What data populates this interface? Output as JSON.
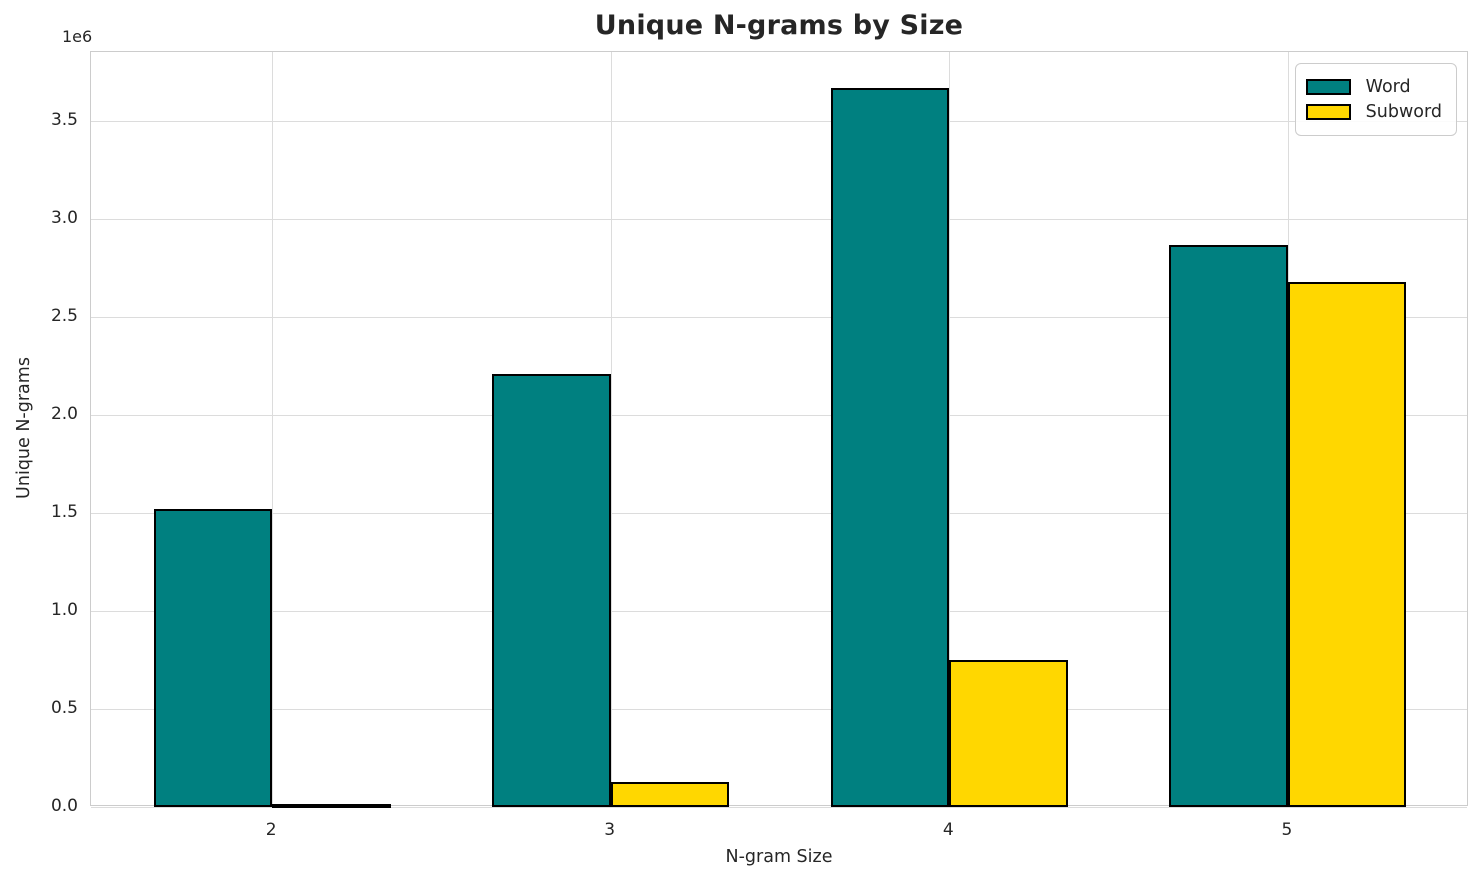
{
  "chart_data": {
    "type": "bar",
    "title": "Unique N-grams by Size",
    "xlabel": "N-gram Size",
    "ylabel": "Unique N-grams",
    "y_offset_label": "1e6",
    "categories": [
      "2",
      "3",
      "4",
      "5"
    ],
    "series": [
      {
        "name": "Word",
        "color": "#008080",
        "values": [
          1520000,
          2210000,
          3670000,
          2870000
        ]
      },
      {
        "name": "Subword",
        "color": "#FFD700",
        "values": [
          17000,
          130000,
          750000,
          2680000
        ]
      }
    ],
    "bar_edge_color": "#000000",
    "bar_edge_width": 2,
    "ylim": [
      0,
      3853500
    ],
    "yticks": {
      "values": [
        0,
        500000,
        1000000,
        1500000,
        2000000,
        2500000,
        3000000,
        3500000
      ],
      "labels": [
        "0.0",
        "0.5",
        "1.0",
        "1.5",
        "2.0",
        "2.5",
        "3.0",
        "3.5"
      ]
    },
    "grid": true,
    "legend_position": "upper right"
  },
  "colors": {
    "text": "#262626",
    "grid": "#dcdcdc",
    "spine": "#cccccc",
    "background": "#ffffff"
  }
}
